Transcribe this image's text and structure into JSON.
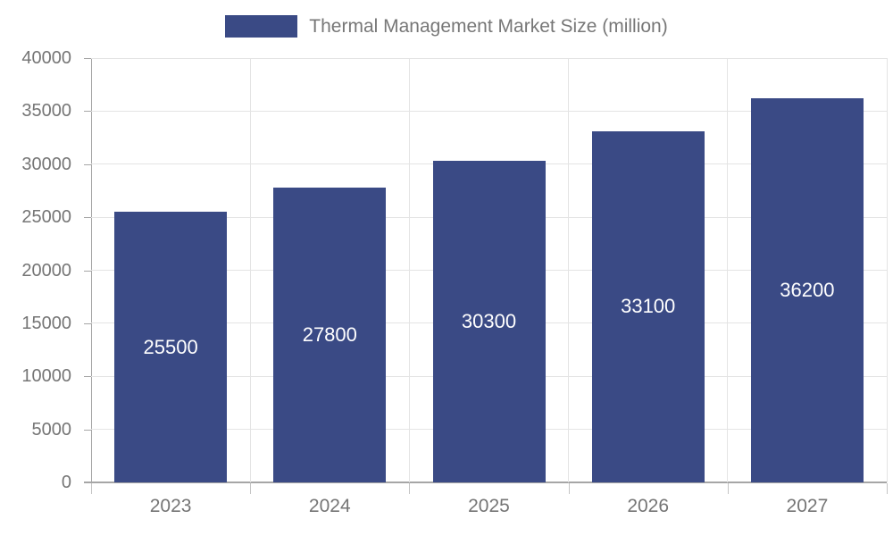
{
  "chart_data": {
    "type": "bar",
    "title": "",
    "legend_label": "Thermal Management Market Size (million)",
    "legend_position": "top-center",
    "categories": [
      "2023",
      "2024",
      "2025",
      "2026",
      "2027"
    ],
    "values": [
      25500,
      27800,
      30300,
      33100,
      36200
    ],
    "value_labels": [
      "25500",
      "27800",
      "30300",
      "33100",
      "36200"
    ],
    "xlabel": "",
    "ylabel": "",
    "ylim": [
      0,
      40000
    ],
    "ytick_interval": 5000,
    "ytick_labels": [
      "0",
      "5000",
      "10000",
      "15000",
      "20000",
      "25000",
      "30000",
      "35000",
      "40000"
    ],
    "grid": true,
    "bar_label_position": "middle-of-bar"
  },
  "colors": {
    "bar": "#3A4A85",
    "bar_label": "#FFFFFF",
    "axis_text": "#757575",
    "legend_text": "#777777",
    "grid_line": "#E4E4E4",
    "axis_line": "#A6A6A6",
    "background": "#FFFFFF"
  }
}
